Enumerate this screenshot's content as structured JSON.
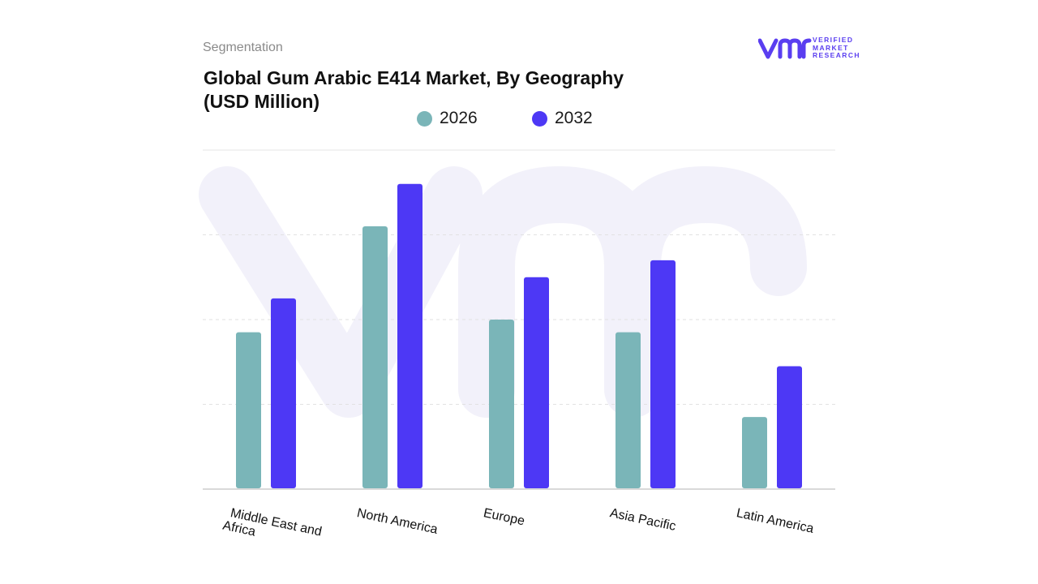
{
  "header": {
    "segment_label": "Segmentation",
    "title": "Global Gum Arabic E414 Market, By Geography (USD Million)"
  },
  "logo": {
    "mark": "vmr",
    "line1": "VERIFIED",
    "line2": "MARKET",
    "line3": "RESEARCH",
    "color_mark": "#5a3ef0",
    "color_text": "#5a3ef0"
  },
  "chart_data": {
    "type": "bar",
    "title": "Global Gum Arabic E414 Market, By Geography (USD Million)",
    "xlabel": "",
    "ylabel": "",
    "categories": [
      "Middle East and Africa",
      "North America",
      "Europe",
      "Asia Pacific",
      "Latin America"
    ],
    "series": [
      {
        "name": "2026",
        "color": "#7ab5b8",
        "values": [
          37,
          62,
          40,
          37,
          17
        ]
      },
      {
        "name": "2032",
        "color": "#4d38f5",
        "values": [
          45,
          72,
          50,
          54,
          29
        ]
      }
    ],
    "ylim": [
      0,
      80
    ],
    "y_ticks_shown": false,
    "grid": true,
    "legend_position": "top-center"
  }
}
